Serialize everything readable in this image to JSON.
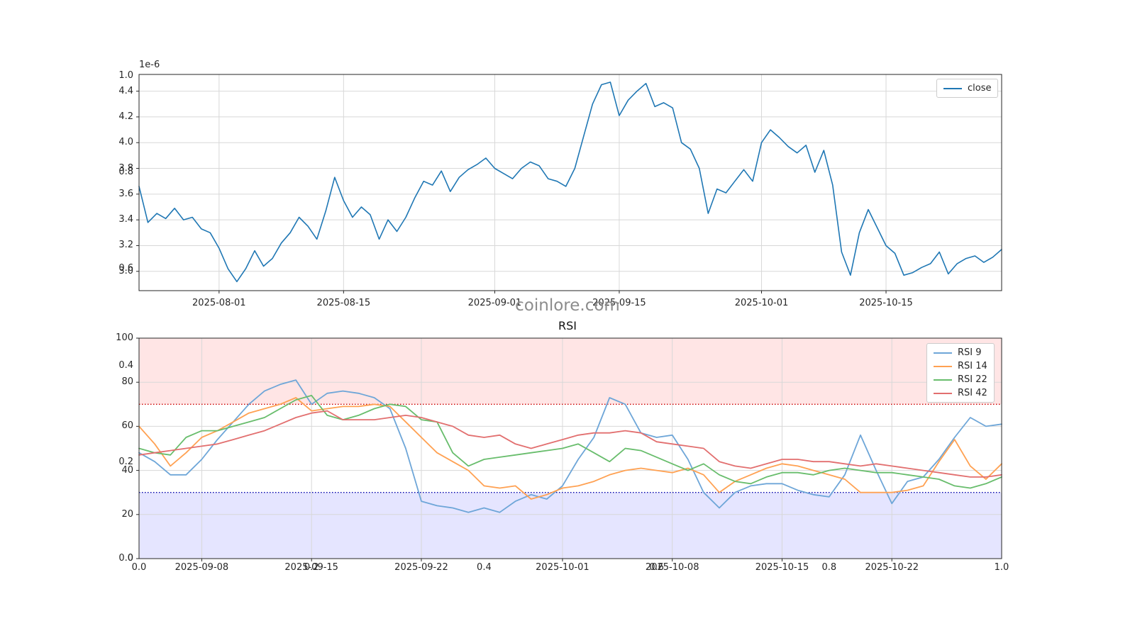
{
  "watermark": "coinlore.com",
  "rsi_title": "RSI",
  "offset_label": "1e-6",
  "colors": {
    "grid": "#d8d8d8",
    "spine": "#262626",
    "close": "#1f77b4",
    "rsi9": "#6ea6d8",
    "rsi14": "#ffa152",
    "rsi22": "#68bd6c",
    "rsi42": "#e26f6f",
    "overbought_band": "rgba(255,0,0,0.10)",
    "oversold_band": "rgba(0,0,255,0.10)",
    "overbought_line": "#cc0000",
    "oversold_line": "#0000aa"
  },
  "overlay_axis": {
    "y_ticks": [
      {
        "t": 1.0,
        "label": "1.0"
      },
      {
        "t": 0.8,
        "label": "0.8"
      },
      {
        "t": 0.6,
        "label": "0.6"
      },
      {
        "t": 0.4,
        "label": "0.4"
      },
      {
        "t": 0.2,
        "label": "0.2"
      },
      {
        "t": 0.0,
        "label": "0.0"
      }
    ],
    "x_ticks": [
      {
        "t": 0.0,
        "label": "0.0"
      },
      {
        "t": 0.2,
        "label": "0.2"
      },
      {
        "t": 0.4,
        "label": "0.4"
      },
      {
        "t": 0.6,
        "label": "0.6"
      },
      {
        "t": 0.8,
        "label": "0.8"
      },
      {
        "t": 1.0,
        "label": "1.0"
      }
    ]
  },
  "chart_data": [
    {
      "type": "line",
      "name": "price-chart",
      "title": "",
      "y_offset": "1e-6",
      "ylim": [
        2.85,
        4.53
      ],
      "y_ticks": [
        {
          "v": 3.0,
          "label": "3.0"
        },
        {
          "v": 3.2,
          "label": "3.2"
        },
        {
          "v": 3.4,
          "label": "3.4"
        },
        {
          "v": 3.6,
          "label": "3.6"
        },
        {
          "v": 3.8,
          "label": "3.8"
        },
        {
          "v": 4.0,
          "label": "4.0"
        },
        {
          "v": 4.2,
          "label": "4.2"
        },
        {
          "v": 4.4,
          "label": "4.4"
        }
      ],
      "x_ticks": [
        {
          "i": 9,
          "label": "2025-08-01"
        },
        {
          "i": 23,
          "label": "2025-08-15"
        },
        {
          "i": 40,
          "label": "2025-09-01"
        },
        {
          "i": 54,
          "label": "2025-09-15"
        },
        {
          "i": 70,
          "label": "2025-10-01"
        },
        {
          "i": 84,
          "label": "2025-10-15"
        }
      ],
      "legend_position": "top-right",
      "series": [
        {
          "name": "close",
          "color": "#1f77b4",
          "values": [
            3.66,
            3.38,
            3.45,
            3.41,
            3.49,
            3.4,
            3.42,
            3.33,
            3.3,
            3.18,
            3.02,
            2.92,
            3.02,
            3.16,
            3.04,
            3.1,
            3.22,
            3.3,
            3.42,
            3.35,
            3.25,
            3.47,
            3.73,
            3.55,
            3.42,
            3.5,
            3.44,
            3.25,
            3.4,
            3.31,
            3.42,
            3.57,
            3.7,
            3.67,
            3.78,
            3.62,
            3.73,
            3.79,
            3.83,
            3.88,
            3.8,
            3.76,
            3.72,
            3.8,
            3.85,
            3.82,
            3.72,
            3.7,
            3.66,
            3.8,
            4.05,
            4.3,
            4.45,
            4.47,
            4.21,
            4.33,
            4.4,
            4.46,
            4.28,
            4.31,
            4.27,
            4.0,
            3.95,
            3.8,
            3.45,
            3.64,
            3.61,
            3.7,
            3.79,
            3.7,
            4.0,
            4.1,
            4.04,
            3.97,
            3.92,
            3.98,
            3.77,
            3.94,
            3.67,
            3.15,
            2.97,
            3.3,
            3.48,
            3.34,
            3.2,
            3.14,
            2.97,
            2.99,
            3.03,
            3.06,
            3.15,
            2.98,
            3.06,
            3.1,
            3.12,
            3.07,
            3.11,
            3.17
          ]
        }
      ]
    },
    {
      "type": "line",
      "name": "rsi-chart",
      "title": "RSI",
      "ylim": [
        0,
        100
      ],
      "y_ticks": [
        {
          "v": 0,
          "label": "0"
        },
        {
          "v": 20,
          "label": "20"
        },
        {
          "v": 40,
          "label": "40"
        },
        {
          "v": 60,
          "label": "60"
        },
        {
          "v": 80,
          "label": "80"
        },
        {
          "v": 100,
          "label": "100"
        }
      ],
      "x_ticks": [
        {
          "i": 4,
          "label": "2025-09-08"
        },
        {
          "i": 11,
          "label": "2025-09-15"
        },
        {
          "i": 18,
          "label": "2025-09-22"
        },
        {
          "i": 27,
          "label": "2025-10-01"
        },
        {
          "i": 34,
          "label": "2025-10-08"
        },
        {
          "i": 41,
          "label": "2025-10-15"
        },
        {
          "i": 48,
          "label": "2025-10-22"
        }
      ],
      "bands": [
        {
          "from": 70,
          "to": 100,
          "color": "rgba(255,0,0,0.10)",
          "name": "overbought-band"
        },
        {
          "from": 0,
          "to": 30,
          "color": "rgba(0,0,255,0.10)",
          "name": "oversold-band"
        }
      ],
      "hlines": [
        {
          "v": 70,
          "color": "#cc0000",
          "name": "overbought-line"
        },
        {
          "v": 30,
          "color": "#0000aa",
          "name": "oversold-line"
        }
      ],
      "legend_position": "top-right",
      "series": [
        {
          "name": "RSI 9",
          "color": "#6ea6d8",
          "values": [
            48,
            44,
            38,
            38,
            45,
            54,
            62,
            70,
            76,
            79,
            81,
            70,
            75,
            76,
            75,
            73,
            68,
            50,
            26,
            24,
            23,
            21,
            23,
            21,
            26,
            29,
            27,
            33,
            45,
            55,
            73,
            70,
            57,
            55,
            56,
            45,
            30,
            23,
            30,
            33,
            34,
            34,
            31,
            29,
            28,
            38,
            56,
            40,
            25,
            35,
            37,
            45,
            55,
            64,
            60,
            61
          ]
        },
        {
          "name": "RSI 14",
          "color": "#ffa152",
          "values": [
            60,
            52,
            42,
            48,
            55,
            58,
            62,
            66,
            68,
            70,
            73,
            67,
            68,
            69,
            69,
            70,
            69,
            62,
            55,
            48,
            44,
            40,
            33,
            32,
            33,
            27,
            29,
            32,
            33,
            35,
            38,
            40,
            41,
            40,
            39,
            41,
            38,
            30,
            35,
            38,
            41,
            43,
            42,
            40,
            38,
            36,
            30,
            30,
            30,
            31,
            33,
            44,
            54,
            42,
            36,
            43
          ]
        },
        {
          "name": "RSI 22",
          "color": "#68bd6c",
          "values": [
            50,
            48,
            47,
            55,
            58,
            58,
            60,
            62,
            64,
            68,
            72,
            74,
            65,
            63,
            65,
            68,
            70,
            69,
            63,
            62,
            48,
            42,
            45,
            46,
            47,
            48,
            49,
            50,
            52,
            48,
            44,
            50,
            49,
            46,
            43,
            40,
            43,
            38,
            35,
            34,
            37,
            39,
            39,
            38,
            40,
            41,
            40,
            39,
            39,
            38,
            37,
            36,
            33,
            32,
            34,
            37
          ]
        },
        {
          "name": "RSI 42",
          "color": "#e26f6f",
          "values": [
            47,
            48,
            49,
            50,
            51,
            52,
            54,
            56,
            58,
            61,
            64,
            66,
            67,
            63,
            63,
            63,
            64,
            65,
            64,
            62,
            60,
            56,
            55,
            56,
            52,
            50,
            52,
            54,
            56,
            57,
            57,
            58,
            57,
            53,
            52,
            51,
            50,
            44,
            42,
            41,
            43,
            45,
            45,
            44,
            44,
            43,
            42,
            43,
            42,
            41,
            40,
            39,
            38,
            37,
            37,
            38
          ]
        }
      ]
    }
  ]
}
